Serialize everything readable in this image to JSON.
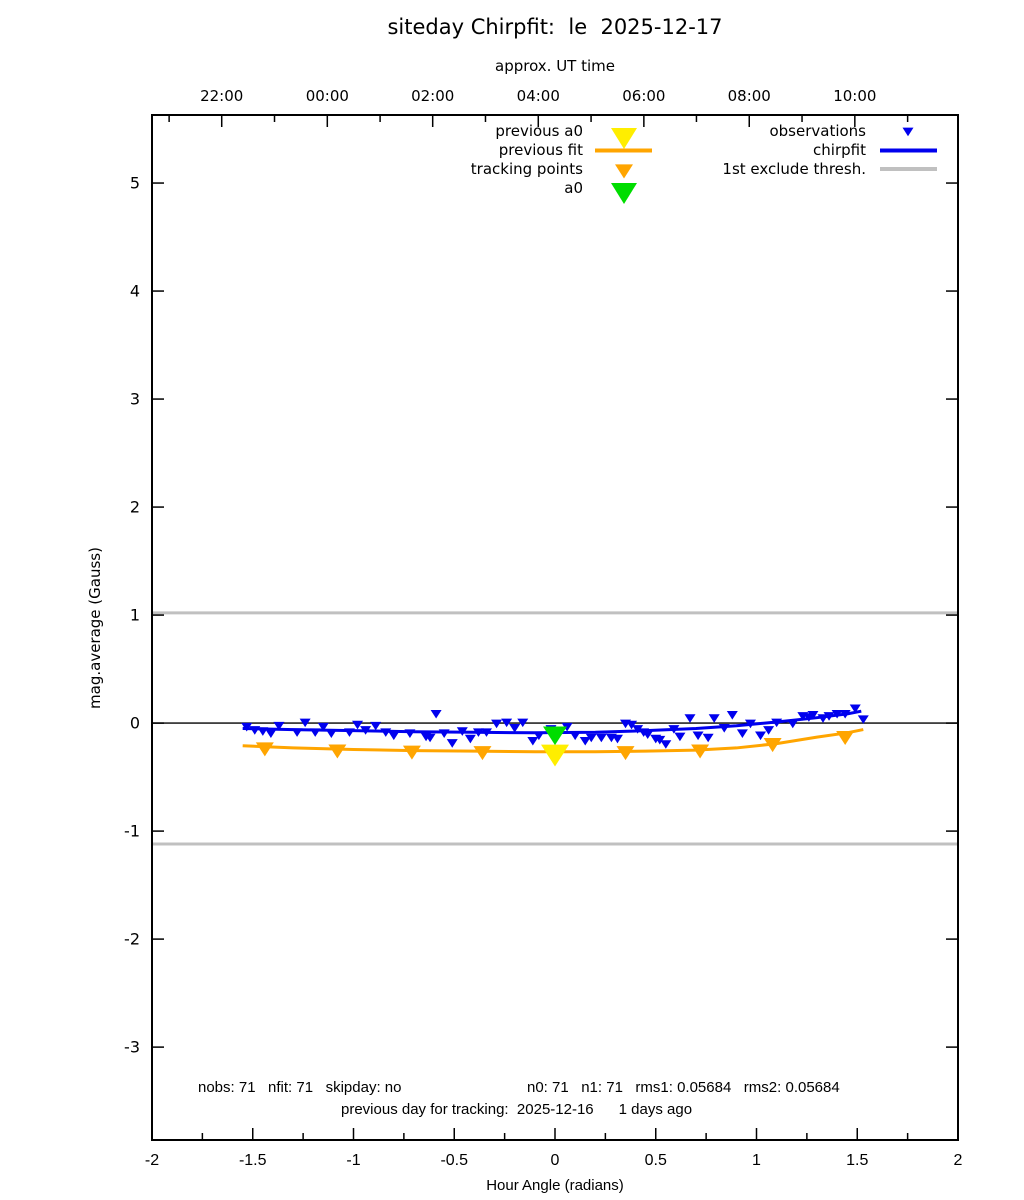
{
  "window": {
    "title": "siteday Chirpfit:  le  2025-12-17"
  },
  "chart_data": {
    "type": "scatter",
    "title": "siteday Chirpfit:  le  2025-12-17",
    "x2label": "approx. UT time",
    "xlabel": "Hour Angle (radians)",
    "ylabel": "mag.average (Gauss)",
    "xlim": [
      -2,
      2
    ],
    "ylim": [
      -3.86,
      5.63
    ],
    "grid": false,
    "x_major_ticks": [
      -2,
      -1.5,
      -1,
      -0.5,
      0,
      0.5,
      1,
      1.5,
      2
    ],
    "x_major_tick_labels": [
      "-2",
      "-1.5",
      "-1",
      "-0.5",
      "0",
      "0.5",
      "1",
      "1.5",
      "2"
    ],
    "x_minor_ticks": [
      -1.75,
      -1.25,
      -0.75,
      -0.25,
      0.25,
      0.75,
      1.25,
      1.75
    ],
    "y_major_ticks": [
      -3,
      -2,
      -1,
      0,
      1,
      2,
      3,
      4,
      5
    ],
    "y_major_tick_labels": [
      "-3",
      "-2",
      "-1",
      "0",
      "1",
      "2",
      "3",
      "4",
      "5"
    ],
    "x2_major_ticks": [
      {
        "label": "22:00",
        "x": -1.654
      },
      {
        "label": "00:00",
        "x": -1.13
      },
      {
        "label": "02:00",
        "x": -0.607
      },
      {
        "label": "04:00",
        "x": -0.083
      },
      {
        "label": "06:00",
        "x": 0.441
      },
      {
        "label": "08:00",
        "x": 0.964
      },
      {
        "label": "10:00",
        "x": 1.488
      }
    ],
    "x2_minor_ticks": [
      -1.915,
      -1.392,
      -0.868,
      -0.345,
      0.179,
      0.702,
      1.226,
      1.75
    ],
    "zero_line_y": 0,
    "series": [
      {
        "name": "observations",
        "type": "points",
        "marker": "triangle-down",
        "color": "#0000ee",
        "size": 5.5,
        "points": [
          [
            -1.53,
            -0.03
          ],
          [
            -1.49,
            -0.06
          ],
          [
            -1.45,
            -0.07
          ],
          [
            -1.41,
            -0.09
          ],
          [
            -1.37,
            -0.02
          ],
          [
            -1.28,
            -0.08
          ],
          [
            -1.24,
            0.01
          ],
          [
            -1.19,
            -0.08
          ],
          [
            -1.15,
            -0.03
          ],
          [
            -1.11,
            -0.09
          ],
          [
            -1.02,
            -0.08
          ],
          [
            -0.98,
            -0.01
          ],
          [
            -0.94,
            -0.06
          ],
          [
            -0.89,
            -0.02
          ],
          [
            -0.84,
            -0.08
          ],
          [
            -0.8,
            -0.11
          ],
          [
            -0.72,
            -0.09
          ],
          [
            -0.64,
            -0.12
          ],
          [
            -0.62,
            -0.13
          ],
          [
            -0.59,
            0.09
          ],
          [
            -0.55,
            -0.09
          ],
          [
            -0.51,
            -0.18
          ],
          [
            -0.46,
            -0.07
          ],
          [
            -0.42,
            -0.14
          ],
          [
            -0.38,
            -0.08
          ],
          [
            -0.34,
            -0.08
          ],
          [
            -0.29,
            0.0
          ],
          [
            -0.24,
            0.01
          ],
          [
            -0.2,
            -0.04
          ],
          [
            -0.16,
            0.01
          ],
          [
            -0.11,
            -0.16
          ],
          [
            -0.08,
            -0.11
          ],
          [
            -0.02,
            -0.05
          ],
          [
            0.06,
            -0.03
          ],
          [
            0.1,
            -0.11
          ],
          [
            0.15,
            -0.16
          ],
          [
            0.18,
            -0.13
          ],
          [
            0.23,
            -0.13
          ],
          [
            0.28,
            -0.13
          ],
          [
            0.31,
            -0.14
          ],
          [
            0.35,
            0.0
          ],
          [
            0.38,
            -0.01
          ],
          [
            0.41,
            -0.05
          ],
          [
            0.44,
            -0.08
          ],
          [
            0.46,
            -0.1
          ],
          [
            0.5,
            -0.14
          ],
          [
            0.52,
            -0.15
          ],
          [
            0.55,
            -0.19
          ],
          [
            0.59,
            -0.05
          ],
          [
            0.62,
            -0.12
          ],
          [
            0.67,
            0.05
          ],
          [
            0.71,
            -0.11
          ],
          [
            0.76,
            -0.13
          ],
          [
            0.79,
            0.05
          ],
          [
            0.84,
            -0.04
          ],
          [
            0.88,
            0.08
          ],
          [
            0.93,
            -0.09
          ],
          [
            0.97,
            0.0
          ],
          [
            1.02,
            -0.11
          ],
          [
            1.06,
            -0.06
          ],
          [
            1.1,
            0.01
          ],
          [
            1.18,
            0.0
          ],
          [
            1.23,
            0.07
          ],
          [
            1.26,
            0.06
          ],
          [
            1.28,
            0.08
          ],
          [
            1.33,
            0.05
          ],
          [
            1.36,
            0.07
          ],
          [
            1.4,
            0.09
          ],
          [
            1.44,
            0.09
          ],
          [
            1.49,
            0.14
          ],
          [
            1.53,
            0.04
          ]
        ]
      },
      {
        "name": "chirpfit",
        "type": "line",
        "color": "#0000ee",
        "width": 3,
        "points": [
          [
            -1.55,
            -0.05
          ],
          [
            -1.3,
            -0.06
          ],
          [
            -1.0,
            -0.07
          ],
          [
            -0.7,
            -0.08
          ],
          [
            -0.4,
            -0.085
          ],
          [
            -0.1,
            -0.09
          ],
          [
            0.2,
            -0.085
          ],
          [
            0.45,
            -0.07
          ],
          [
            0.7,
            -0.05
          ],
          [
            0.9,
            -0.025
          ],
          [
            1.1,
            0.01
          ],
          [
            1.3,
            0.05
          ],
          [
            1.45,
            0.085
          ],
          [
            1.52,
            0.11
          ]
        ]
      },
      {
        "name": "previous fit",
        "type": "line",
        "color": "#ffa500",
        "width": 3,
        "points": [
          [
            -1.55,
            -0.21
          ],
          [
            -1.3,
            -0.23
          ],
          [
            -1.0,
            -0.245
          ],
          [
            -0.7,
            -0.255
          ],
          [
            -0.4,
            -0.26
          ],
          [
            -0.1,
            -0.265
          ],
          [
            0.2,
            -0.265
          ],
          [
            0.45,
            -0.26
          ],
          [
            0.7,
            -0.25
          ],
          [
            0.9,
            -0.23
          ],
          [
            1.1,
            -0.19
          ],
          [
            1.3,
            -0.13
          ],
          [
            1.45,
            -0.09
          ],
          [
            1.53,
            -0.06
          ]
        ]
      },
      {
        "name": "tracking points",
        "type": "points",
        "marker": "triangle-down",
        "color": "#ffa500",
        "size": 9,
        "points": [
          [
            -1.44,
            -0.23
          ],
          [
            -1.08,
            -0.25
          ],
          [
            -0.71,
            -0.26
          ],
          [
            -0.36,
            -0.265
          ],
          [
            0.0,
            -0.27
          ],
          [
            0.35,
            -0.265
          ],
          [
            0.72,
            -0.25
          ],
          [
            1.08,
            -0.19
          ],
          [
            1.44,
            -0.125
          ]
        ]
      },
      {
        "name": "previous a0",
        "type": "points",
        "marker": "triangle-down",
        "color": "#ffee00",
        "size": 14,
        "points": [
          [
            0.0,
            -0.28
          ]
        ]
      },
      {
        "name": "a0",
        "type": "points",
        "marker": "triangle-down",
        "color": "#00dd00",
        "size": 12,
        "points": [
          [
            0.0,
            -0.1
          ]
        ]
      },
      {
        "name": "1st exclude thresh.",
        "type": "hlines",
        "color": "#c0c0c0",
        "width": 3,
        "y_values": [
          1.02,
          -1.12
        ]
      }
    ],
    "legend": {
      "position": "top-inside",
      "left_column": [
        {
          "label": "previous a0",
          "marker": "big-triangle",
          "color": "#ffee00"
        },
        {
          "label": "previous fit",
          "marker": "line",
          "color": "#ffa500"
        },
        {
          "label": "tracking points",
          "marker": "small-triangle",
          "color": "#ffa500"
        },
        {
          "label": "a0",
          "marker": "big-triangle",
          "color": "#00dd00"
        }
      ],
      "right_column": [
        {
          "label": "observations",
          "marker": "tiny-triangle",
          "color": "#0000ee"
        },
        {
          "label": "chirpfit",
          "marker": "line",
          "color": "#0000ee"
        },
        {
          "label": "1st exclude thresh.",
          "marker": "line",
          "color": "#c0c0c0"
        }
      ]
    }
  },
  "stats": {
    "nobs": "71",
    "nfit": "71",
    "skipday": "no",
    "n0": "71",
    "n1": "71",
    "rms1": "0.05684",
    "rms2": "0.05684",
    "previous_day_for_tracking": "2025-12-16",
    "days_ago": "1 days ago",
    "line1_left": "nobs: 71   nfit: 71   skipday: no",
    "line1_right": "n0: 71   n1: 71   rms1: 0.05684   rms2: 0.05684",
    "line2": "previous day for tracking:  2025-12-16      1 days ago"
  },
  "colors": {
    "observations": "#0000ee",
    "chirpfit": "#0000ee",
    "previous_fit": "#ffa500",
    "tracking_points": "#ffa500",
    "previous_a0": "#ffee00",
    "a0": "#00dd00",
    "exclude_threshold": "#c0c0c0",
    "axis": "#000000",
    "background": "#ffffff"
  }
}
